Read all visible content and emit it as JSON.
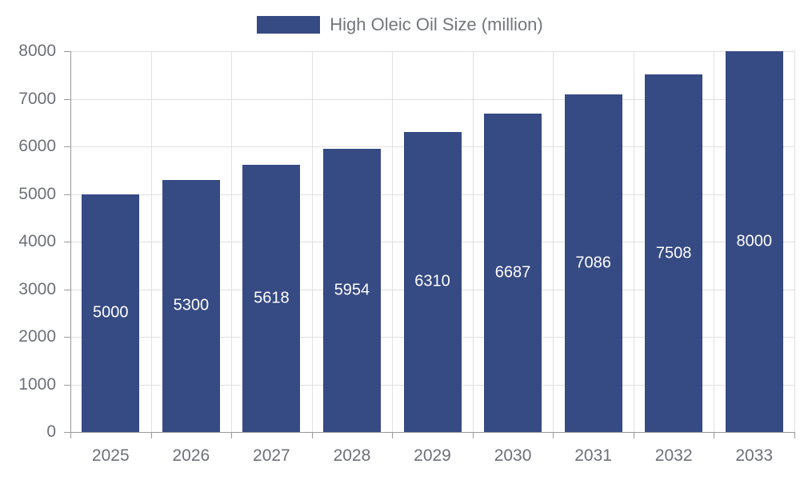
{
  "colors": {
    "bar": "#364A83",
    "grid": "#E0E0E0",
    "axis": "#999999",
    "tick_text": "#6E7079",
    "legend_text": "#73777B",
    "bar_label": "#FFFFFF",
    "background": "#FFFFFF"
  },
  "chart_data": {
    "type": "bar",
    "title": "",
    "legend": "High Oleic Oil Size (million)",
    "legend_position": "top-center",
    "categories": [
      "2025",
      "2026",
      "2027",
      "2028",
      "2029",
      "2030",
      "2031",
      "2032",
      "2033"
    ],
    "values": [
      5000,
      5300,
      5618,
      5954,
      6310,
      6687,
      7086,
      7508,
      8000
    ],
    "series": [
      {
        "name": "High Oleic Oil Size (million)",
        "values": [
          5000,
          5300,
          5618,
          5954,
          6310,
          6687,
          7086,
          7508,
          8000
        ]
      }
    ],
    "xlabel": "",
    "ylabel": "",
    "ylim": [
      0,
      8000
    ],
    "yticks": [
      0,
      1000,
      2000,
      3000,
      4000,
      5000,
      6000,
      7000,
      8000
    ],
    "grid": true,
    "grid_vertical": true,
    "bar_labels_visible": true,
    "bar_label_position": "inside-center"
  }
}
